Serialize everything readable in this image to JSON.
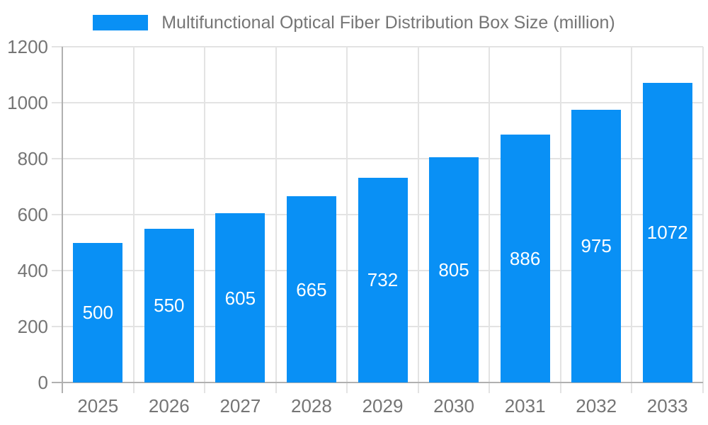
{
  "legend": {
    "label": "Multifunctional Optical Fiber Distribution Box Size (million)"
  },
  "chart_data": {
    "type": "bar",
    "title": "Multifunctional Optical Fiber Distribution Box Size (million)",
    "categories": [
      "2025",
      "2026",
      "2027",
      "2028",
      "2029",
      "2030",
      "2031",
      "2032",
      "2033"
    ],
    "values": [
      500,
      550,
      605,
      665,
      732,
      805,
      886,
      975,
      1072
    ],
    "xlabel": "",
    "ylabel": "",
    "ylim": [
      0,
      1200
    ],
    "yticks": [
      0,
      200,
      400,
      600,
      800,
      1000,
      1200
    ],
    "grid": true,
    "legend_position": "top",
    "data_labels": "inside-center-white",
    "bar_color": "#0990f5",
    "grid_color": "#e3e3e3",
    "axis_color": "#b0b0b0",
    "text_color": "#757575",
    "label_color": "#ffffff"
  }
}
